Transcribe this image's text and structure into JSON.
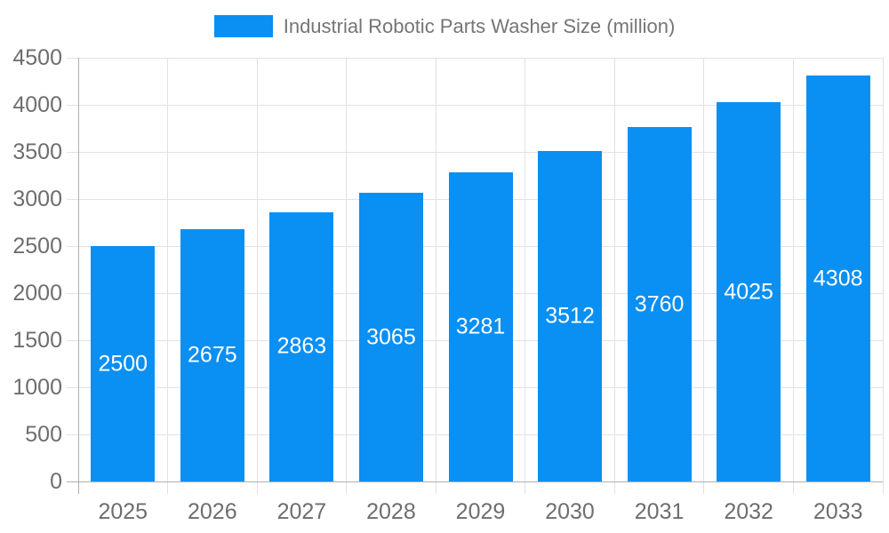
{
  "legend": {
    "label": "Industrial Robotic Parts Washer Size (million)"
  },
  "chart_data": {
    "type": "bar",
    "title": "Industrial Robotic Parts Washer Size (million)",
    "xlabel": "",
    "ylabel": "",
    "categories": [
      "2025",
      "2026",
      "2027",
      "2028",
      "2029",
      "2030",
      "2031",
      "2032",
      "2033"
    ],
    "values": [
      2500,
      2675,
      2863,
      3065,
      3281,
      3512,
      3760,
      4025,
      4308
    ],
    "bar_labels": [
      "2500",
      "2675",
      "2863",
      "3065",
      "3281",
      "3512",
      "3760",
      "4025",
      "4308"
    ],
    "yticks": [
      0,
      500,
      1000,
      1500,
      2000,
      2500,
      3000,
      3500,
      4000,
      4500
    ],
    "ylim": [
      0,
      4500
    ],
    "grid": true,
    "legend_position": "top-center",
    "colors": {
      "bar": "#0a8ff2",
      "grid": "#e2e2e2",
      "axis": "#b0b0b0",
      "tick_text": "#6e6e6e",
      "legend_text": "#757575",
      "bar_label_text": "#ffffff",
      "background": "#ffffff"
    }
  }
}
